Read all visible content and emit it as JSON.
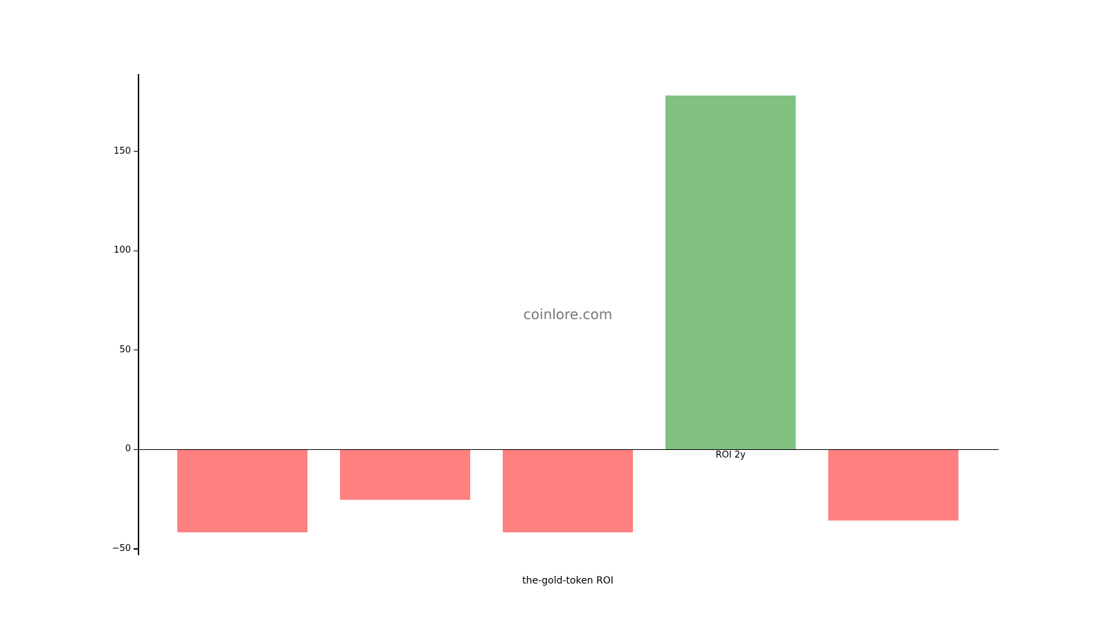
{
  "page": {
    "background": "#ffffff"
  },
  "watermark": {
    "text": "coinlore.com",
    "color": "#787878"
  },
  "chart_data": {
    "type": "bar",
    "title": "",
    "xlabel": "the-gold-token ROI",
    "ylabel": "",
    "categories": [
      "",
      "",
      "",
      "ROI 2y",
      ""
    ],
    "values": [
      -41.7,
      -25.4,
      -41.7,
      178.0,
      -35.7
    ],
    "bar_colors": [
      "#ff8080",
      "#ff8080",
      "#ff8080",
      "#80c080",
      "#ff8080"
    ],
    "negative_color": "#ff8080",
    "positive_color": "#80c080",
    "axis_color": "#000000",
    "ytick_values": [
      150,
      100,
      50,
      0,
      -50
    ],
    "ytick_labels": [
      "150",
      "100",
      "50",
      "0",
      "−50"
    ],
    "ylim": [
      -53,
      189
    ],
    "grid": false,
    "legend_position": "none",
    "watermark": "coinlore.com"
  }
}
